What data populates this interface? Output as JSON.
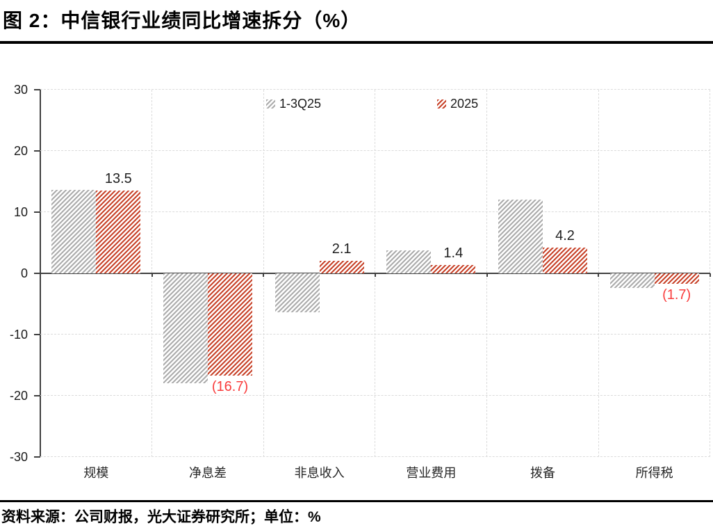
{
  "title": "图 2：中信银行业绩同比增速拆分（%）",
  "footer": {
    "source": "资料来源：公司财报，光大证券研究所；单位：%"
  },
  "colors": {
    "series1_hatch": "#ACACAC",
    "series2_hatch": "#C8432A",
    "value_label_dark": "#1F1F1F",
    "negative_label": "#F93B3B",
    "grid": "#DBDBDB",
    "axis": "#3F3F3F",
    "rule": "#000000"
  },
  "chart_data": {
    "type": "bar",
    "title": "中信银行业绩同比增速拆分（%）",
    "categories": [
      "规模",
      "净息差",
      "非息收入",
      "营业费用",
      "拨备",
      "所得税"
    ],
    "series": [
      {
        "name": "1-3Q25",
        "color": "#ACACAC",
        "hatch": "diagonal",
        "values": [
          13.6,
          -17.9,
          -6.4,
          3.7,
          12.1,
          -2.4
        ]
      },
      {
        "name": "2025",
        "color": "#C8432A",
        "hatch": "diagonal",
        "values": [
          13.5,
          -16.7,
          2.1,
          1.4,
          4.2,
          -1.7
        ]
      }
    ],
    "value_labels": [
      "13.5",
      "(16.7)",
      "2.1",
      "1.4",
      "4.2",
      "(1.7)"
    ],
    "value_labels_series": "2025",
    "ylim": [
      -30,
      30
    ],
    "yticks": [
      30,
      20,
      10,
      0,
      -10,
      -20,
      -30
    ],
    "xlabel": "",
    "ylabel": "",
    "unit": "%",
    "grid": "horizontal dashed lines + dashed vertical group separators, solid zero line",
    "legend_position": "inside-top"
  }
}
